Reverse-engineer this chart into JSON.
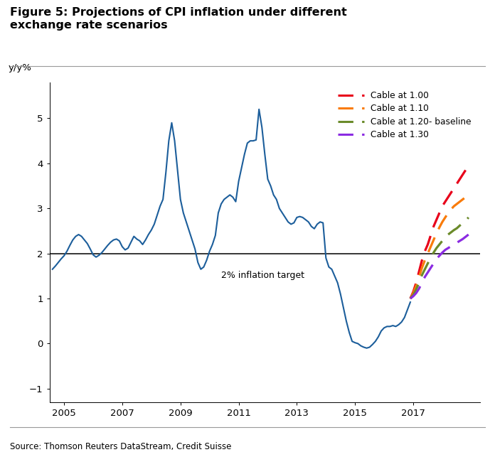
{
  "title": "Figure 5: Projections of CPI inflation under different\nexchange rate scenarios",
  "ylabel": "y/y%",
  "source": "Source: Thomson Reuters DataStream, Credit Suisse",
  "xlim_start": 2004.5,
  "xlim_end": 2019.3,
  "ylim": [
    -1.3,
    5.8
  ],
  "yticks": [
    -1,
    0,
    1,
    2,
    3,
    4,
    5
  ],
  "xticks": [
    2005,
    2007,
    2009,
    2011,
    2013,
    2015,
    2017
  ],
  "hline_y": 2.0,
  "hline_label": "2% inflation target",
  "hline_x": 2010.4,
  "hline_y_text": 1.62,
  "historical_color": "#1C5E9B",
  "projection_colors": {
    "cable_100": "#E8001A",
    "cable_110": "#F97B0A",
    "cable_120": "#6B8B2A",
    "cable_130": "#8B2BE2"
  },
  "legend_labels": [
    "Cable at 1.00",
    "Cable at 1.10",
    "Cable at 1.20- baseline",
    "Cable at 1.30"
  ],
  "historical_data": {
    "years": [
      2004.6,
      2004.7,
      2004.8,
      2004.9,
      2005.0,
      2005.1,
      2005.2,
      2005.3,
      2005.4,
      2005.5,
      2005.6,
      2005.7,
      2005.8,
      2005.9,
      2006.0,
      2006.1,
      2006.2,
      2006.3,
      2006.4,
      2006.5,
      2006.6,
      2006.7,
      2006.8,
      2006.9,
      2007.0,
      2007.1,
      2007.2,
      2007.3,
      2007.4,
      2007.5,
      2007.6,
      2007.7,
      2007.8,
      2007.9,
      2008.0,
      2008.1,
      2008.2,
      2008.3,
      2008.4,
      2008.5,
      2008.6,
      2008.7,
      2008.8,
      2008.9,
      2009.0,
      2009.1,
      2009.2,
      2009.3,
      2009.4,
      2009.5,
      2009.6,
      2009.7,
      2009.8,
      2009.9,
      2010.0,
      2010.1,
      2010.2,
      2010.3,
      2010.4,
      2010.5,
      2010.6,
      2010.7,
      2010.8,
      2010.9,
      2011.0,
      2011.1,
      2011.2,
      2011.3,
      2011.4,
      2011.5,
      2011.6,
      2011.7,
      2011.8,
      2011.9,
      2012.0,
      2012.1,
      2012.2,
      2012.3,
      2012.4,
      2012.5,
      2012.6,
      2012.7,
      2012.8,
      2012.9,
      2013.0,
      2013.1,
      2013.2,
      2013.3,
      2013.4,
      2013.5,
      2013.6,
      2013.7,
      2013.8,
      2013.9,
      2014.0,
      2014.1,
      2014.2,
      2014.3,
      2014.4,
      2014.5,
      2014.6,
      2014.7,
      2014.8,
      2014.9,
      2015.0,
      2015.1,
      2015.2,
      2015.3,
      2015.4,
      2015.5,
      2015.6,
      2015.7,
      2015.8,
      2015.9,
      2016.0,
      2016.1,
      2016.2,
      2016.3,
      2016.4,
      2016.5,
      2016.6,
      2016.7,
      2016.8,
      2016.9
    ],
    "values": [
      1.65,
      1.72,
      1.8,
      1.88,
      1.95,
      2.05,
      2.18,
      2.3,
      2.38,
      2.42,
      2.38,
      2.3,
      2.22,
      2.1,
      1.97,
      1.92,
      1.96,
      2.02,
      2.1,
      2.18,
      2.25,
      2.3,
      2.32,
      2.28,
      2.15,
      2.08,
      2.12,
      2.25,
      2.38,
      2.32,
      2.28,
      2.2,
      2.3,
      2.42,
      2.52,
      2.65,
      2.85,
      3.05,
      3.2,
      3.8,
      4.5,
      4.9,
      4.5,
      3.85,
      3.2,
      2.9,
      2.7,
      2.5,
      2.3,
      2.1,
      1.8,
      1.65,
      1.7,
      1.85,
      2.05,
      2.2,
      2.4,
      2.9,
      3.1,
      3.2,
      3.25,
      3.3,
      3.25,
      3.15,
      3.6,
      3.9,
      4.2,
      4.45,
      4.5,
      4.5,
      4.52,
      5.2,
      4.8,
      4.2,
      3.65,
      3.5,
      3.3,
      3.2,
      3.0,
      2.9,
      2.8,
      2.7,
      2.65,
      2.68,
      2.8,
      2.82,
      2.8,
      2.75,
      2.7,
      2.6,
      2.55,
      2.65,
      2.7,
      2.68,
      1.9,
      1.7,
      1.65,
      1.5,
      1.35,
      1.1,
      0.8,
      0.5,
      0.25,
      0.05,
      0.02,
      0.0,
      -0.05,
      -0.08,
      -0.1,
      -0.08,
      -0.02,
      0.05,
      0.15,
      0.28,
      0.35,
      0.38,
      0.38,
      0.4,
      0.38,
      0.42,
      0.48,
      0.58,
      0.75,
      0.92
    ]
  },
  "projection_data": {
    "cable_100": {
      "years": [
        2016.9,
        2017.0,
        2017.1,
        2017.2,
        2017.3,
        2017.4,
        2017.5,
        2017.6,
        2017.7,
        2017.8,
        2017.9,
        2018.0,
        2018.1,
        2018.2,
        2018.3,
        2018.4,
        2018.5,
        2018.6,
        2018.7,
        2018.8,
        2018.9
      ],
      "values": [
        1.0,
        1.15,
        1.35,
        1.6,
        1.85,
        2.05,
        2.2,
        2.4,
        2.6,
        2.75,
        2.9,
        3.05,
        3.15,
        3.25,
        3.35,
        3.45,
        3.55,
        3.65,
        3.75,
        3.85,
        4.0
      ]
    },
    "cable_110": {
      "years": [
        2016.9,
        2017.0,
        2017.1,
        2017.2,
        2017.3,
        2017.4,
        2017.5,
        2017.6,
        2017.7,
        2017.8,
        2017.9,
        2018.0,
        2018.1,
        2018.2,
        2018.3,
        2018.4,
        2018.5,
        2018.6,
        2018.7,
        2018.8,
        2018.9
      ],
      "values": [
        1.0,
        1.12,
        1.28,
        1.48,
        1.68,
        1.85,
        2.0,
        2.15,
        2.3,
        2.45,
        2.58,
        2.7,
        2.8,
        2.9,
        2.98,
        3.05,
        3.1,
        3.15,
        3.2,
        3.25,
        3.3
      ]
    },
    "cable_120": {
      "years": [
        2016.9,
        2017.0,
        2017.1,
        2017.2,
        2017.3,
        2017.4,
        2017.5,
        2017.6,
        2017.7,
        2017.8,
        2017.9,
        2018.0,
        2018.1,
        2018.2,
        2018.3,
        2018.4,
        2018.5,
        2018.6,
        2018.7,
        2018.8,
        2018.9
      ],
      "values": [
        1.0,
        1.08,
        1.2,
        1.35,
        1.52,
        1.65,
        1.78,
        1.9,
        2.02,
        2.12,
        2.2,
        2.28,
        2.35,
        2.42,
        2.47,
        2.52,
        2.56,
        2.62,
        2.67,
        2.72,
        2.8
      ]
    },
    "cable_130": {
      "years": [
        2016.9,
        2017.0,
        2017.1,
        2017.2,
        2017.3,
        2017.4,
        2017.5,
        2017.6,
        2017.7,
        2017.8,
        2017.9,
        2018.0,
        2018.1,
        2018.2,
        2018.3,
        2018.4,
        2018.5,
        2018.6,
        2018.7,
        2018.8,
        2018.9
      ],
      "values": [
        1.0,
        1.05,
        1.12,
        1.22,
        1.35,
        1.48,
        1.58,
        1.68,
        1.78,
        1.88,
        1.95,
        2.02,
        2.08,
        2.12,
        2.16,
        2.2,
        2.24,
        2.28,
        2.32,
        2.37,
        2.42
      ]
    }
  }
}
